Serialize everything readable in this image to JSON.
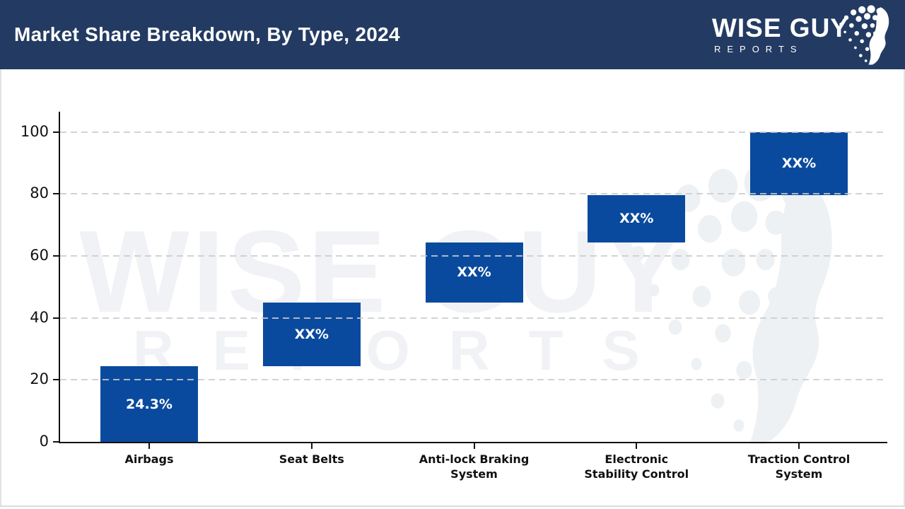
{
  "header": {
    "title": "Market Share Breakdown, By Type, 2024",
    "bg_color": "#233b63",
    "brand": {
      "name": "WISE GUY",
      "subtitle": "REPORTS"
    }
  },
  "chart_data": {
    "type": "bar",
    "variant": "waterfall",
    "title": "Market Share Breakdown, By Type, 2024",
    "categories": [
      "Airbags",
      "Seat Belts",
      "Anti-lock Braking System",
      "Electronic Stability Control",
      "Traction Control System"
    ],
    "category_lines": [
      [
        "Airbags"
      ],
      [
        "Seat Belts"
      ],
      [
        "Anti-lock Braking",
        "System"
      ],
      [
        "Electronic",
        "Stability Control"
      ],
      [
        "Traction Control",
        "System"
      ]
    ],
    "segments": [
      {
        "category": "Airbags",
        "start": 0,
        "end": 24.3,
        "label": "24.3%"
      },
      {
        "category": "Seat Belts",
        "start": 24.3,
        "end": 45.0,
        "label": "XX%"
      },
      {
        "category": "Anti-lock Braking System",
        "start": 45.0,
        "end": 64.3,
        "label": "XX%"
      },
      {
        "category": "Electronic Stability Control",
        "start": 64.3,
        "end": 79.6,
        "label": "XX%"
      },
      {
        "category": "Traction Control System",
        "start": 79.6,
        "end": 100,
        "label": "XX%"
      }
    ],
    "y_ticks": [
      0,
      20,
      40,
      60,
      80,
      100
    ],
    "ylim": [
      0,
      105
    ],
    "xlabel": "",
    "ylabel": "",
    "grid": {
      "axis": "y",
      "style": "dashed",
      "color": "#d4d4d4"
    },
    "legend": null,
    "bar_color": "#0a4a9e",
    "bar_label_color": "#ffffff",
    "axis_color": "#111111",
    "watermark": {
      "line1": "WISE GUY",
      "line2": "REPORTS"
    }
  }
}
